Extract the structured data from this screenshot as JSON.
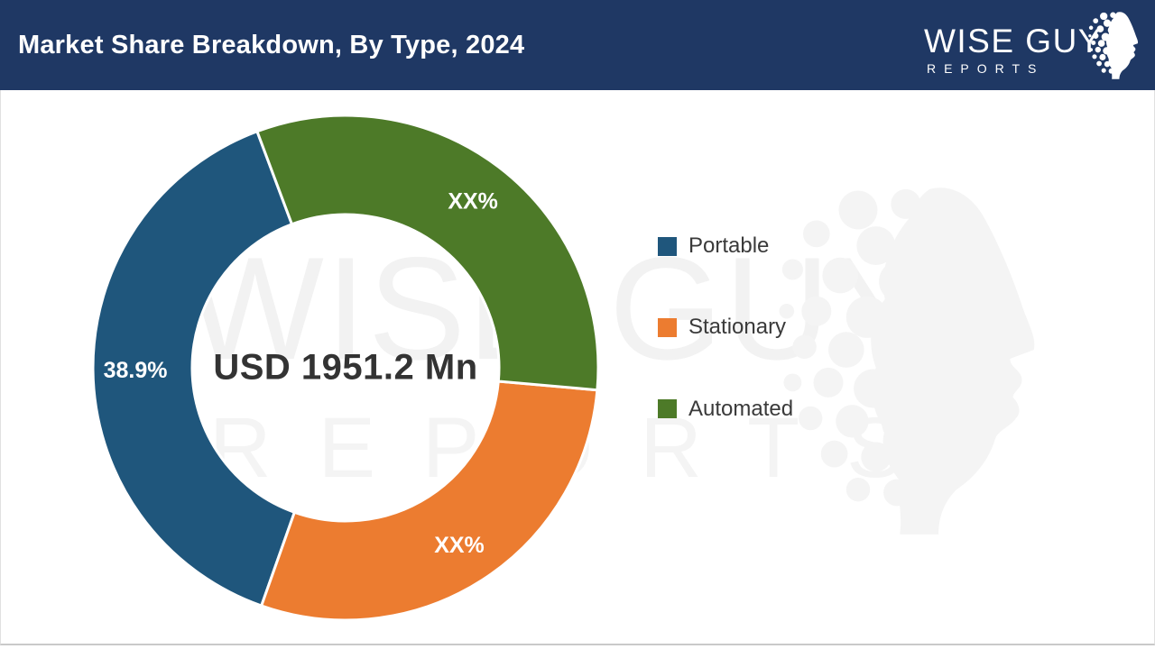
{
  "header": {
    "title": "Market Share Breakdown, By Type, 2024"
  },
  "logo": {
    "line1": "WISE GUY",
    "line2": "REPORTS"
  },
  "watermark": {
    "line1": "WISE GUY",
    "line2": "REPORTS"
  },
  "chart_data": {
    "type": "donut",
    "title": "Market Share Breakdown, By Type, 2024",
    "center_label": "USD 1951.2 Mn",
    "unit": "percent",
    "start_angle_deg": 110.5,
    "direction": "ccw",
    "legend_position": "right",
    "segments": [
      {
        "name": "Portable",
        "value_pct": 38.9,
        "label": "38.9%",
        "color": "#1F567C"
      },
      {
        "name": "Stationary",
        "value_pct": 29.0,
        "label": "XX%",
        "color": "#EC7C30"
      },
      {
        "name": "Automated",
        "value_pct": 32.1,
        "label": "XX%",
        "color": "#4D7A28"
      }
    ]
  }
}
